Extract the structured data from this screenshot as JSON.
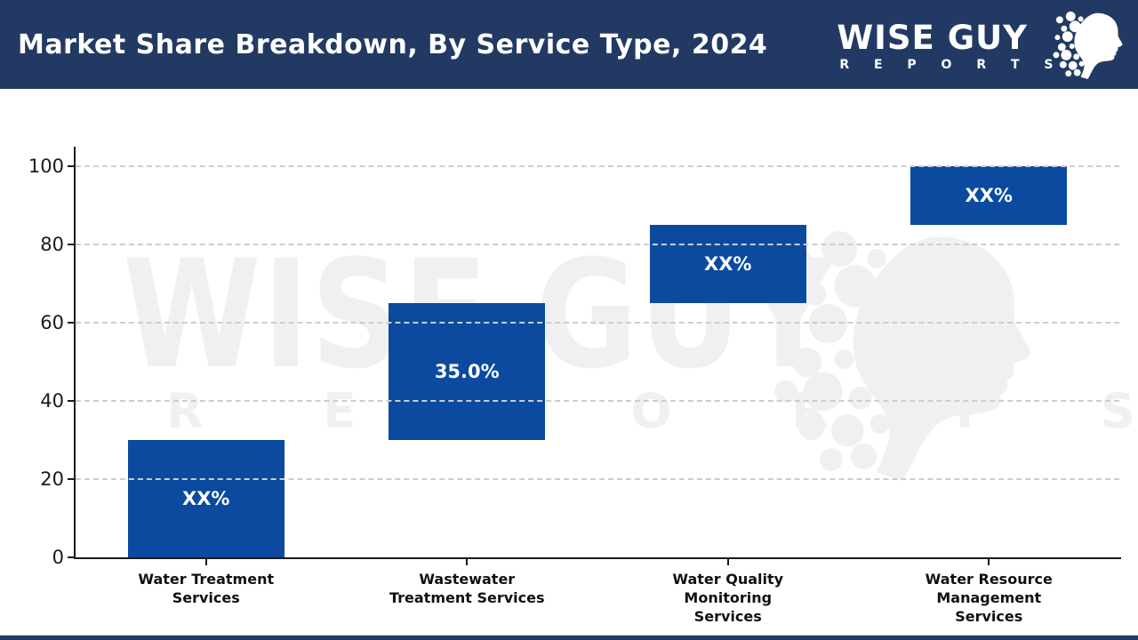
{
  "header": {
    "title": "Market Share Breakdown, By Service Type, 2024",
    "logo": {
      "line1": "WISE GUY",
      "line2": "R E P O R T S"
    }
  },
  "watermark": {
    "line1": "WISE GUY",
    "line2": "R E P O R T S"
  },
  "colors": {
    "header_bg": "#223A63",
    "bar": "#0B4A9F",
    "grid": "#CDCDCD",
    "axis": "#1A1A1A",
    "bar_label": "#FFFFFF",
    "watermark": "#F0F0F2"
  },
  "chart_data": {
    "type": "bar",
    "subtype": "waterfall",
    "title": "Market Share Breakdown, By Service Type, 2024",
    "categories": [
      "Water Treatment Services",
      "Wastewater Treatment Services",
      "Water Quality Monitoring Services",
      "Water Resource Management Services"
    ],
    "categories_lines": [
      [
        "Water Treatment",
        "Services"
      ],
      [
        "Wastewater",
        "Treatment Services"
      ],
      [
        "Water Quality",
        "Monitoring",
        "Services"
      ],
      [
        "Water Resource",
        "Management",
        "Services"
      ]
    ],
    "bars": [
      {
        "category": "Water Treatment Services",
        "start": 0,
        "end": 30,
        "value_label": "XX%"
      },
      {
        "category": "Wastewater Treatment Services",
        "start": 30,
        "end": 65,
        "value_label": "35.0%"
      },
      {
        "category": "Water Quality Monitoring Services",
        "start": 65,
        "end": 85,
        "value_label": "XX%"
      },
      {
        "category": "Water Resource Management Services",
        "start": 85,
        "end": 100,
        "value_label": "XX%"
      }
    ],
    "yticks": [
      0,
      20,
      40,
      60,
      80,
      100
    ],
    "ylim": [
      0,
      105
    ],
    "xlabel": "",
    "ylabel": "",
    "grid": "dashed-horizontal",
    "legend": null
  }
}
